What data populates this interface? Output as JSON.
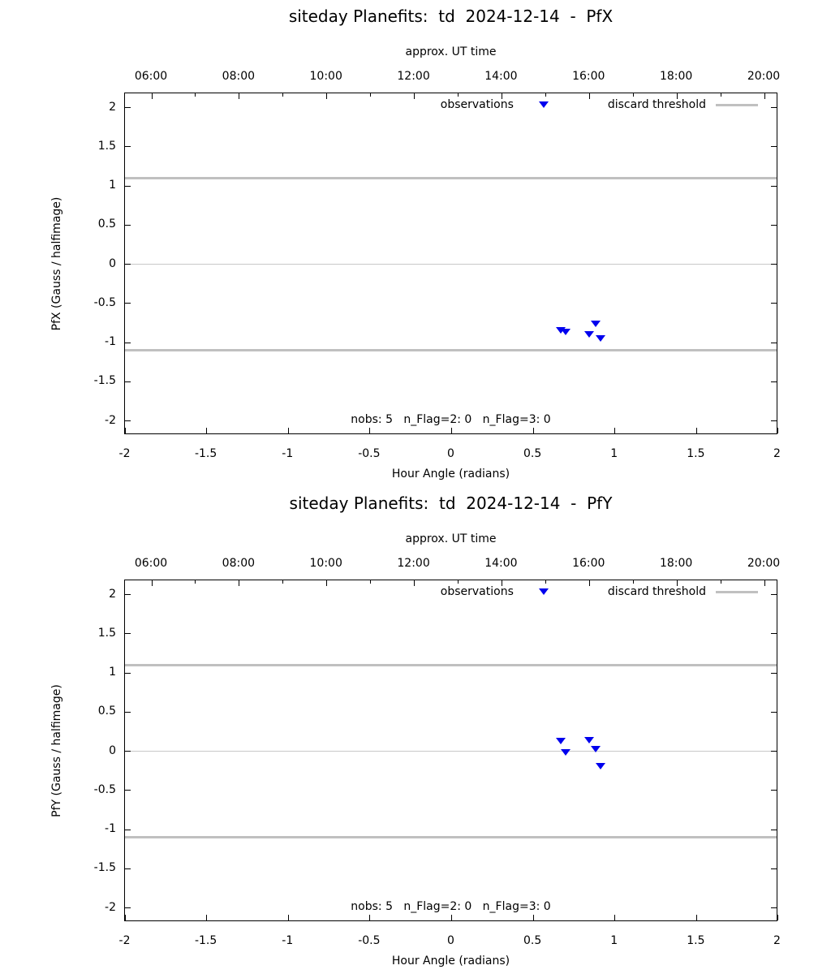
{
  "colors": {
    "background": "#ffffff",
    "frame": "#000000",
    "observation_marker": "#0000ee",
    "threshold_line": "#c0c0c0",
    "zero_line": "#c8c8c8",
    "text": "#000000"
  },
  "chart_data": [
    {
      "type": "scatter",
      "title": "siteday Planefits:  td  2024-12-14  -  PfX",
      "x2label": "approx. UT time",
      "xlabel": "Hour Angle (radians)",
      "ylabel": "PfX (Gauss / halfimage)",
      "xlim": [
        -2,
        2
      ],
      "ylim": [
        -2.2,
        2.2
      ],
      "xtick_labels": [
        "-2",
        "-1.5",
        "-1",
        "-0.5",
        "0",
        "0.5",
        "1",
        "1.5",
        "2"
      ],
      "ytick_labels": [
        "2",
        "1.5",
        "1",
        "0.5",
        "0",
        "-0.5",
        "-1",
        "-1.5",
        "-2"
      ],
      "x2tick_labels": [
        "06:00",
        "08:00",
        "10:00",
        "12:00",
        "14:00",
        "16:00",
        "18:00",
        "20:00"
      ],
      "legend": {
        "observations": "observations",
        "threshold": "discard threshold"
      },
      "legend_position": "top-inside",
      "grid": false,
      "zero_line": 0,
      "series": [
        {
          "name": "observations",
          "type": "scatter",
          "marker": "triangle-down",
          "color": "#0000ee",
          "points": [
            [
              0.67,
              -0.84
            ],
            [
              0.7,
              -0.87
            ],
            [
              0.84,
              -0.9
            ],
            [
              0.88,
              -0.76
            ],
            [
              0.91,
              -0.95
            ]
          ]
        },
        {
          "name": "discard threshold",
          "type": "hline",
          "color": "#c0c0c0",
          "values": [
            1.1,
            -1.1
          ]
        }
      ],
      "stats_text": "nobs: 5   n_Flag=2: 0   n_Flag=3: 0"
    },
    {
      "type": "scatter",
      "title": "siteday Planefits:  td  2024-12-14  -  PfY",
      "x2label": "approx. UT time",
      "xlabel": "Hour Angle (radians)",
      "ylabel": "PfY (Gauss / halfimage)",
      "xlim": [
        -2,
        2
      ],
      "ylim": [
        -2.2,
        2.2
      ],
      "xtick_labels": [
        "-2",
        "-1.5",
        "-1",
        "-0.5",
        "0",
        "0.5",
        "1",
        "1.5",
        "2"
      ],
      "ytick_labels": [
        "2",
        "1.5",
        "1",
        "0.5",
        "0",
        "-0.5",
        "-1",
        "-1.5",
        "-2"
      ],
      "x2tick_labels": [
        "06:00",
        "08:00",
        "10:00",
        "12:00",
        "14:00",
        "16:00",
        "18:00",
        "20:00"
      ],
      "legend": {
        "observations": "observations",
        "threshold": "discard threshold"
      },
      "legend_position": "top-inside",
      "grid": false,
      "zero_line": 0,
      "series": [
        {
          "name": "observations",
          "type": "scatter",
          "marker": "triangle-down",
          "color": "#0000ee",
          "points": [
            [
              0.67,
              0.13
            ],
            [
              0.7,
              -0.02
            ],
            [
              0.84,
              0.14
            ],
            [
              0.88,
              0.03
            ],
            [
              0.91,
              -0.19
            ]
          ]
        },
        {
          "name": "discard threshold",
          "type": "hline",
          "color": "#c0c0c0",
          "values": [
            1.1,
            -1.1
          ]
        }
      ],
      "stats_text": "nobs: 5   n_Flag=2: 0   n_Flag=3: 0"
    }
  ]
}
